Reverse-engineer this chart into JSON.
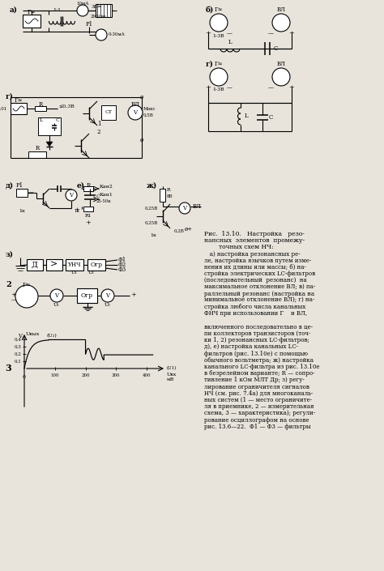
{
  "bg_color": "#e8e4dc",
  "text_color": "#111111",
  "caption_lines": [
    "Рис.  13.10.   Настройка   резо-",
    "нансных  элементов  промежу-",
    "точных схем НЧ:",
    "   а) настройка резонансных ре-",
    "ле, настройка язычков путем изме-",
    "нения их длины или массы; б) на-",
    "стройка электрических LC-фильтров",
    "(последовательный  резонанс)  на",
    "максимальное отклонение ВЛ; в) па-",
    "раллельный резонанс (настройка на",
    "минимальное отклонение ВЛ); г) на-",
    "стройка любого числа канальных",
    "ФНЧ при использовании Г    и ВЛ,",
    "",
    "включенного последовательно в це-",
    "пи коллекторов транзисторов (точ-",
    "ки 1, 2) резонансных LC-фильтров;",
    "д), е) настройка канальных LC-",
    "фильтров (рис. 13.10е) с помощью",
    "обычного вольтметра; ж) настройка",
    "канального LC-фильтра из рис. 13.10е",
    "в безрелейном варианте; R — сопро-",
    "тивление 1 кОм МЛТ Др; з) регу-",
    "лирование ограничителя сигналов",
    "НЧ (см. рис. 7.4а) для многоканаль-",
    "ных систем (1 — место ограничите-",
    "ля в приемнике, 2 — измерительная",
    "схема, 3 — характеристика); регули-",
    "рование осциллографом на основе",
    "рис. 13.6—22.  Ф1 — Ф3 — фильтры"
  ]
}
